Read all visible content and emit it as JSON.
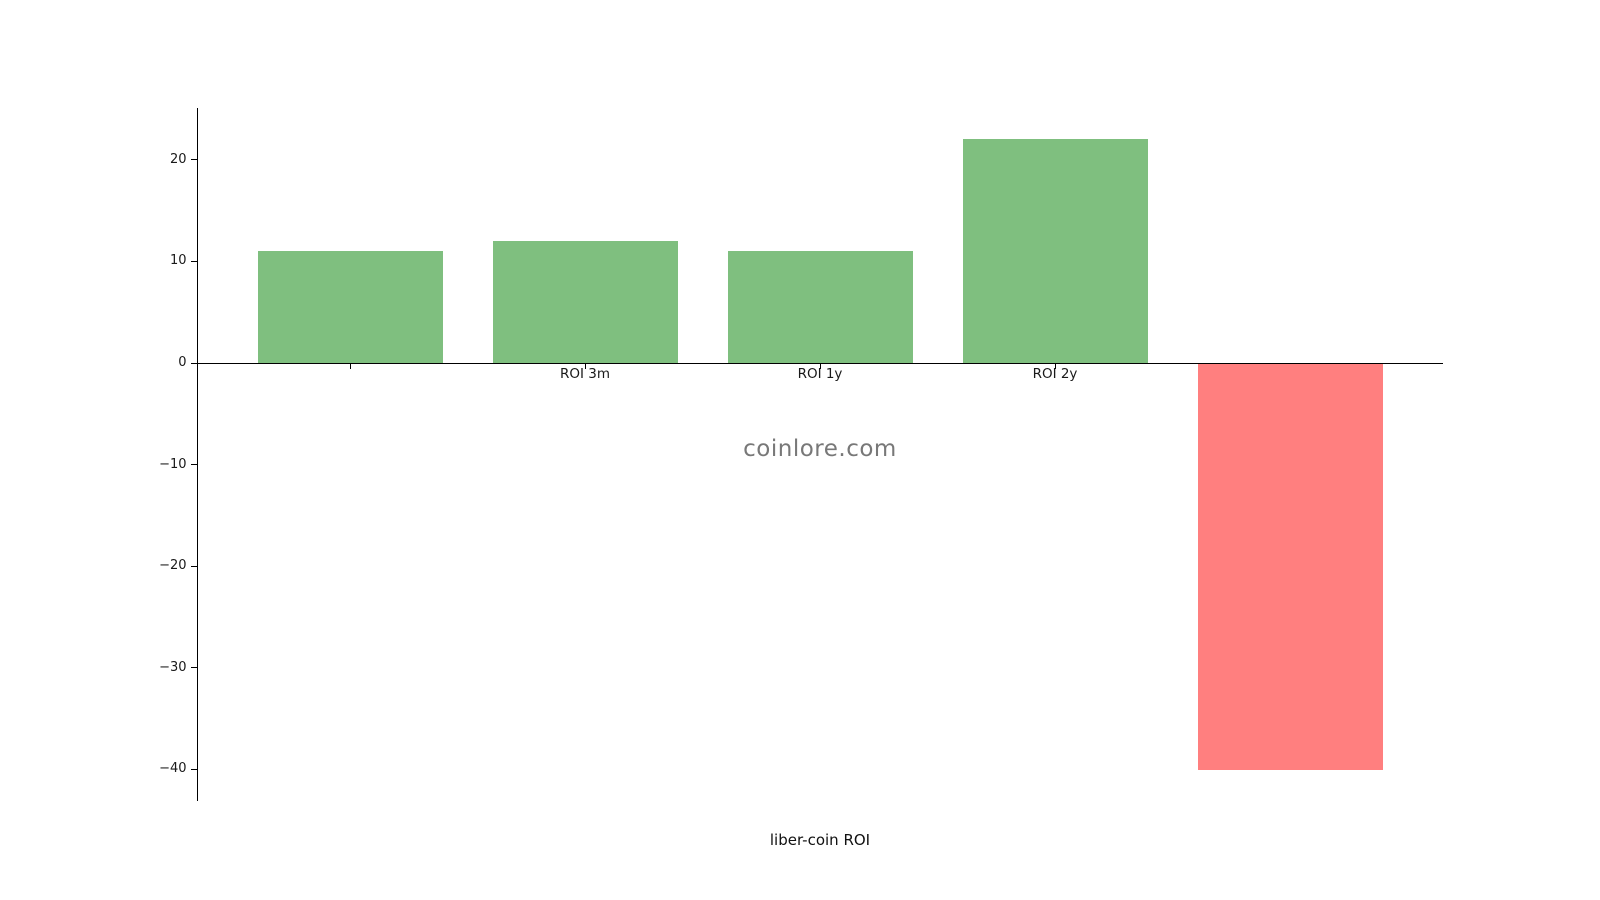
{
  "figure": {
    "watermark": "coinlore.com"
  },
  "chart_data": {
    "type": "bar",
    "title": "liber-coin ROI",
    "categories": [
      "",
      "ROI 3m",
      "ROI 1y",
      "ROI 2y",
      ""
    ],
    "values": [
      11,
      12,
      11,
      22,
      -40
    ],
    "positive_color": "#7fbf7f",
    "negative_color": "#ff7f7f",
    "yticks": [
      20,
      10,
      0,
      -10,
      -20,
      -30,
      -40
    ],
    "ytick_labels": [
      "20",
      "10",
      "0",
      "−10",
      "−20",
      "−30",
      "−40"
    ],
    "ylim": [
      -43,
      25
    ],
    "xtick_marks_shown": [
      true,
      true,
      true,
      true,
      false
    ],
    "grid": false,
    "legend": false,
    "background": "#ffffff",
    "watermark": "coinlore.com"
  }
}
